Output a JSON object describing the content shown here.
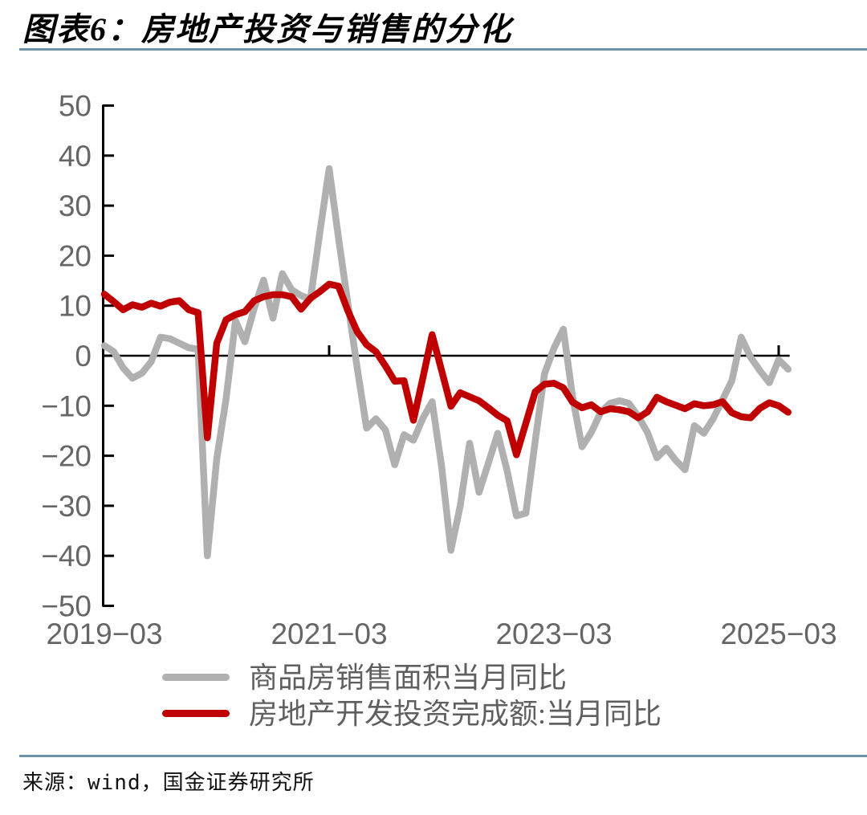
{
  "title": "图表6：房地产投资与销售的分化",
  "source": "来源：wind，国金证券研究所",
  "colors": {
    "accent_red": "#c00000",
    "line_gray": "#b0b0b0",
    "axis_text": "#666666",
    "axis_line": "#000000",
    "divider_blue": "#6b93a5",
    "legend_text": "#5f5f5f"
  },
  "legend": {
    "items": [
      {
        "label": "商品房销售面积当月同比",
        "color": "#b0b0b0"
      },
      {
        "label": "房地产开发投资完成额:当月同比",
        "color": "#c00000"
      }
    ]
  },
  "chart_data": {
    "type": "line",
    "title": "",
    "xlabel": "",
    "ylabel": "",
    "ylim": [
      -50,
      50
    ],
    "yticks": [
      50,
      40,
      30,
      20,
      10,
      0,
      -10,
      -20,
      -30,
      -40,
      -50
    ],
    "xticks": [
      "2019-03",
      "2021-03",
      "2023-03",
      "2025-03"
    ],
    "grid": false,
    "legend_position": "bottom",
    "x": [
      "2019-03",
      "2019-04",
      "2019-05",
      "2019-06",
      "2019-07",
      "2019-08",
      "2019-09",
      "2019-10",
      "2019-11",
      "2019-12",
      "2020-01",
      "2020-02",
      "2020-03",
      "2020-04",
      "2020-05",
      "2020-06",
      "2020-07",
      "2020-08",
      "2020-09",
      "2020-10",
      "2020-11",
      "2020-12",
      "2021-01",
      "2021-02",
      "2021-03",
      "2021-04",
      "2021-05",
      "2021-06",
      "2021-07",
      "2021-08",
      "2021-09",
      "2021-10",
      "2021-11",
      "2021-12",
      "2022-01",
      "2022-02",
      "2022-03",
      "2022-04",
      "2022-05",
      "2022-06",
      "2022-07",
      "2022-08",
      "2022-09",
      "2022-10",
      "2022-11",
      "2022-12",
      "2023-01",
      "2023-02",
      "2023-03",
      "2023-04",
      "2023-05",
      "2023-06",
      "2023-07",
      "2023-08",
      "2023-09",
      "2023-10",
      "2023-11",
      "2023-12",
      "2024-01",
      "2024-02",
      "2024-03",
      "2024-04",
      "2024-05",
      "2024-06",
      "2024-07",
      "2024-08",
      "2024-09",
      "2024-10",
      "2024-11",
      "2024-12",
      "2025-01",
      "2025-02",
      "2025-03",
      "2025-04"
    ],
    "series": [
      {
        "name": "商品房销售面积当月同比",
        "color": "#b0b0b0",
        "values": [
          2.0,
          0.8,
          -2.4,
          -4.5,
          -3.5,
          -1.2,
          3.7,
          3.4,
          2.5,
          1.6,
          1.3,
          -40.0,
          -20.6,
          -8.5,
          7.0,
          2.8,
          9.5,
          15.1,
          7.5,
          16.4,
          13.2,
          12.0,
          11.3,
          24.5,
          37.4,
          23.5,
          10.5,
          -2.5,
          -14.5,
          -12.6,
          -14.8,
          -21.8,
          -15.8,
          -16.9,
          -12.5,
          -9.2,
          -22.0,
          -38.9,
          -30.0,
          -17.5,
          -27.3,
          -21.5,
          -15.5,
          -23.0,
          -32.0,
          -31.5,
          -17.0,
          -3.6,
          1.5,
          5.3,
          -8.3,
          -18.2,
          -15.3,
          -11.3,
          -9.5,
          -9.0,
          -9.5,
          -12.1,
          -15.4,
          -20.4,
          -18.5,
          -20.9,
          -22.8,
          -14.0,
          -15.5,
          -12.6,
          -8.8,
          -5.0,
          3.7,
          -0.3,
          -3.0,
          -5.4,
          -0.8,
          -2.7
        ]
      },
      {
        "name": "房地产开发投资完成额:当月同比",
        "color": "#c00000",
        "values": [
          12.3,
          10.8,
          9.2,
          10.2,
          9.7,
          10.5,
          9.9,
          10.7,
          11.0,
          9.2,
          8.6,
          -16.4,
          2.5,
          7.2,
          8.2,
          8.8,
          11.0,
          11.8,
          12.2,
          12.2,
          11.8,
          9.3,
          11.5,
          12.8,
          14.3,
          13.9,
          9.0,
          4.8,
          2.2,
          0.8,
          -2.0,
          -5.1,
          -5.0,
          -12.9,
          -4.5,
          4.2,
          -2.9,
          -10.1,
          -7.4,
          -8.2,
          -9.0,
          -10.4,
          -11.9,
          -13.0,
          -19.8,
          -13.5,
          -7.2,
          -5.7,
          -5.5,
          -6.4,
          -9.3,
          -10.4,
          -9.8,
          -11.2,
          -10.6,
          -10.8,
          -11.2,
          -12.4,
          -11.2,
          -8.3,
          -9.2,
          -9.9,
          -10.6,
          -9.6,
          -10.0,
          -9.8,
          -9.2,
          -11.4,
          -12.2,
          -12.4,
          -10.5,
          -9.4,
          -10.0,
          -11.3
        ]
      }
    ]
  }
}
